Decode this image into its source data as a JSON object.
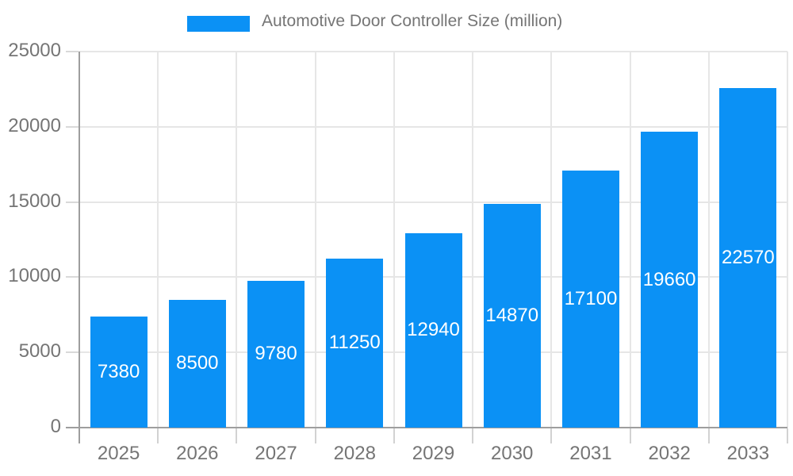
{
  "legend": {
    "label": "Automotive Door Controller Size (million)"
  },
  "chart_data": {
    "type": "bar",
    "title": "Automotive Door Controller Size (million)",
    "categories": [
      "2025",
      "2026",
      "2027",
      "2028",
      "2029",
      "2030",
      "2031",
      "2032",
      "2033"
    ],
    "series": [
      {
        "name": "Automotive Door Controller Size (million)",
        "values": [
          7380,
          8500,
          9780,
          11250,
          12940,
          14870,
          17100,
          19660,
          22570
        ]
      }
    ],
    "value_labels": [
      "7380",
      "8500",
      "9780",
      "11250",
      "12940",
      "14870",
      "17100",
      "19660",
      "22570"
    ],
    "xlabel": "",
    "ylabel": "",
    "ylim": [
      0,
      25000
    ],
    "yticks": [
      0,
      5000,
      10000,
      15000,
      20000,
      25000
    ],
    "ytick_labels": [
      "0",
      "5000",
      "10000",
      "15000",
      "20000",
      "25000"
    ],
    "grid": true,
    "legend_position": "top",
    "value_label_position": "inside-center",
    "colors": {
      "bar": "#0b91f5",
      "axis_text": "#757575",
      "value_text": "#ffffff",
      "grid_line": "#e6e6e6",
      "axis_line": "#9e9e9e",
      "minor_tick": "#d2d2d2",
      "y_tick": "#d9d9d9",
      "background": "#ffffff"
    }
  }
}
